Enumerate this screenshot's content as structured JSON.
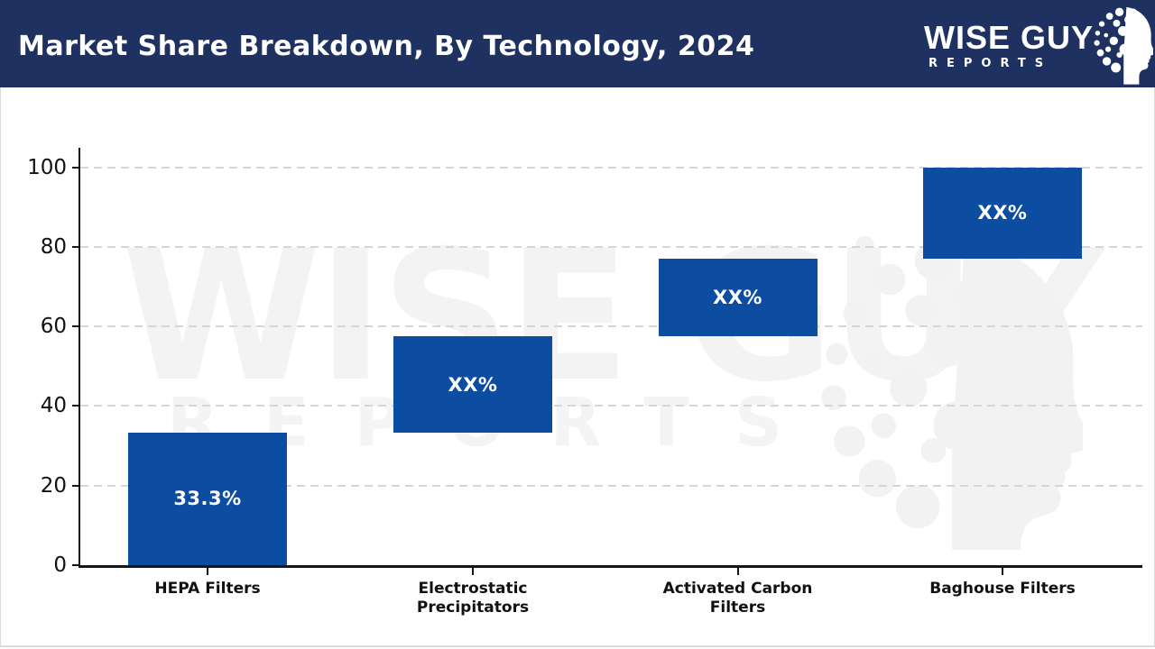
{
  "header": {
    "title": "Market Share Breakdown, By Technology, 2024",
    "bg_color": "#1e3161",
    "logo": {
      "wordmark": "WISE GUY",
      "subtext": "REPORTS"
    }
  },
  "watermark": {
    "wordmark": "WISE GUY",
    "subtext": "REPORTS"
  },
  "chart_data": {
    "type": "bar",
    "subtype": "waterfall-floating-segments",
    "title": "Market Share Breakdown, By Technology, 2024",
    "xlabel": "",
    "ylabel": "",
    "ylim": [
      0,
      105
    ],
    "yticks": [
      0,
      20,
      40,
      60,
      80,
      100
    ],
    "grid": "horizontal-dashed",
    "legend_position": "none",
    "bar_color": "#0d4da1",
    "bar_label_color": "#ffffff",
    "grid_color": "#d6d6d6",
    "axis_color": "#151515",
    "categories": [
      "HEPA Filters",
      "Electrostatic Precipitators",
      "Activated Carbon Filters",
      "Baghouse Filters"
    ],
    "series": [
      {
        "name": "Market Share",
        "segments": [
          {
            "category": "HEPA Filters",
            "start": 0,
            "end": 33.3,
            "label": "33.3%"
          },
          {
            "category": "Electrostatic Precipitators",
            "start": 33.3,
            "end": 57.5,
            "label": "XX%"
          },
          {
            "category": "Activated Carbon Filters",
            "start": 57.5,
            "end": 76.9,
            "label": "XX%"
          },
          {
            "category": "Baghouse Filters",
            "start": 76.9,
            "end": 100,
            "label": "XX%"
          }
        ]
      }
    ]
  }
}
